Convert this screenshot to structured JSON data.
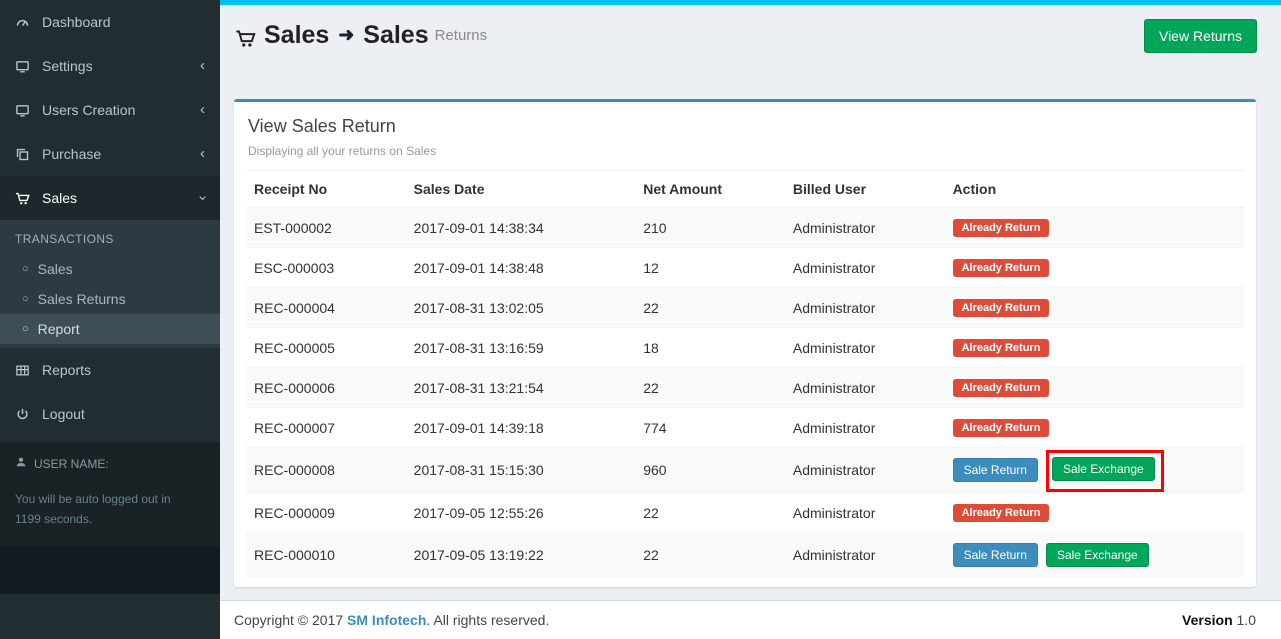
{
  "colors": {
    "accent_blue": "#3c8dbc",
    "green": "#00a65a",
    "red": "#dd4b39",
    "cyan_strip": "#00c0ef",
    "annotation_red": "#ff0000",
    "sidebar_bg": "#222d32"
  },
  "sidebar": {
    "items_top": [
      {
        "label": "Dashboard",
        "icon": "gauge-icon",
        "chevron": "none"
      },
      {
        "label": "Settings",
        "icon": "monitor-icon",
        "chevron": "left"
      },
      {
        "label": "Users Creation",
        "icon": "monitor-icon",
        "chevron": "left"
      },
      {
        "label": "Purchase",
        "icon": "copy-icon",
        "chevron": "left"
      },
      {
        "label": "Sales",
        "icon": "cart-icon",
        "chevron": "down",
        "active": true
      }
    ],
    "section_header": "TRANSACTIONS",
    "submenu": [
      {
        "label": "Sales"
      },
      {
        "label": "Sales Returns"
      },
      {
        "label": "Report",
        "highlight": true
      }
    ],
    "items_bottom": [
      {
        "label": "Reports",
        "icon": "table-icon"
      },
      {
        "label": "Logout",
        "icon": "power-icon"
      }
    ],
    "user_label": "USER NAME:",
    "auto_logout_text": "You will be auto logged out in 1199 seconds."
  },
  "header": {
    "title_main": "Sales",
    "title_arrow": "➜",
    "title_second": "Sales",
    "title_small": "Returns",
    "action_button": "View Returns"
  },
  "box": {
    "title": "View Sales Return",
    "subtitle": "Displaying all your returns on Sales"
  },
  "table": {
    "columns": [
      "Receipt No",
      "Sales Date",
      "Net Amount",
      "Billed User",
      "Action"
    ],
    "rows": [
      {
        "receipt_no": "EST-000002",
        "sales_date": "2017-09-01 14:38:34",
        "net_amount": "210",
        "billed_user": "Administrator",
        "actions": [
          {
            "type": "already-return"
          }
        ]
      },
      {
        "receipt_no": "ESC-000003",
        "sales_date": "2017-09-01 14:38:48",
        "net_amount": "12",
        "billed_user": "Administrator",
        "actions": [
          {
            "type": "already-return"
          }
        ]
      },
      {
        "receipt_no": "REC-000004",
        "sales_date": "2017-08-31 13:02:05",
        "net_amount": "22",
        "billed_user": "Administrator",
        "actions": [
          {
            "type": "already-return"
          }
        ]
      },
      {
        "receipt_no": "REC-000005",
        "sales_date": "2017-08-31 13:16:59",
        "net_amount": "18",
        "billed_user": "Administrator",
        "actions": [
          {
            "type": "already-return"
          }
        ]
      },
      {
        "receipt_no": "REC-000006",
        "sales_date": "2017-08-31 13:21:54",
        "net_amount": "22",
        "billed_user": "Administrator",
        "actions": [
          {
            "type": "already-return"
          }
        ]
      },
      {
        "receipt_no": "REC-000007",
        "sales_date": "2017-09-01 14:39:18",
        "net_amount": "774",
        "billed_user": "Administrator",
        "actions": [
          {
            "type": "already-return"
          }
        ]
      },
      {
        "receipt_no": "REC-000008",
        "sales_date": "2017-08-31 15:15:30",
        "net_amount": "960",
        "billed_user": "Administrator",
        "actions": [
          {
            "type": "sale-return"
          },
          {
            "type": "sale-exchange",
            "annotated": true
          }
        ]
      },
      {
        "receipt_no": "REC-000009",
        "sales_date": "2017-09-05 12:55:26",
        "net_amount": "22",
        "billed_user": "Administrator",
        "actions": [
          {
            "type": "already-return"
          }
        ]
      },
      {
        "receipt_no": "REC-000010",
        "sales_date": "2017-09-05 13:19:22",
        "net_amount": "22",
        "billed_user": "Administrator",
        "actions": [
          {
            "type": "sale-return"
          },
          {
            "type": "sale-exchange"
          }
        ]
      }
    ]
  },
  "action_labels": {
    "already-return": "Already Return",
    "sale-return": "Sale Return",
    "sale-exchange": "Sale Exchange"
  },
  "footer": {
    "copyright_prefix": "Copyright © 2017 ",
    "company": "SM Infotech",
    "copyright_suffix": ". All rights reserved.",
    "version_label": "Version",
    "version_number": "1.0"
  }
}
